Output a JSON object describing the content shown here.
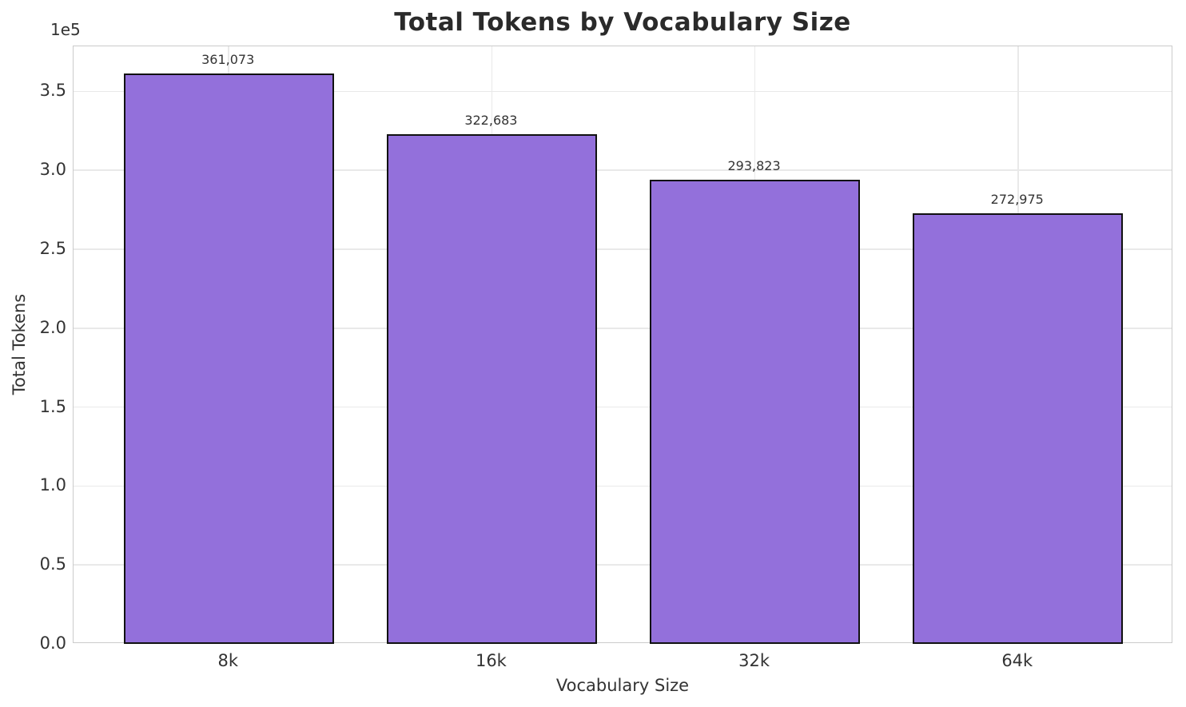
{
  "chart_data": {
    "type": "bar",
    "title": "Total Tokens by Vocabulary Size",
    "xlabel": "Vocabulary Size",
    "ylabel": "Total Tokens",
    "categories": [
      "8k",
      "16k",
      "32k",
      "64k"
    ],
    "values": [
      361073,
      322683,
      293823,
      272975
    ],
    "bar_labels": [
      "361,073",
      "322,683",
      "293,823",
      "272,975"
    ],
    "y_axis": {
      "offset_text": "1e5",
      "tick_labels": [
        "0.0",
        "0.5",
        "1.0",
        "1.5",
        "2.0",
        "2.5",
        "3.0",
        "3.5"
      ],
      "tick_values": [
        0,
        50000,
        100000,
        150000,
        200000,
        250000,
        300000,
        350000
      ],
      "ylim": [
        0,
        378500
      ]
    },
    "x_axis": {
      "xlim": [
        -0.59,
        3.59
      ],
      "bar_width": 0.8
    },
    "grid": true,
    "legend": false,
    "colors": {
      "bar_fill": "#9370db",
      "bar_edge": "#111111",
      "grid_line": "#e9e9e9",
      "spine": "#cbcbcb",
      "title_text": "#2a2a2a",
      "tick_text": "#333333"
    }
  }
}
